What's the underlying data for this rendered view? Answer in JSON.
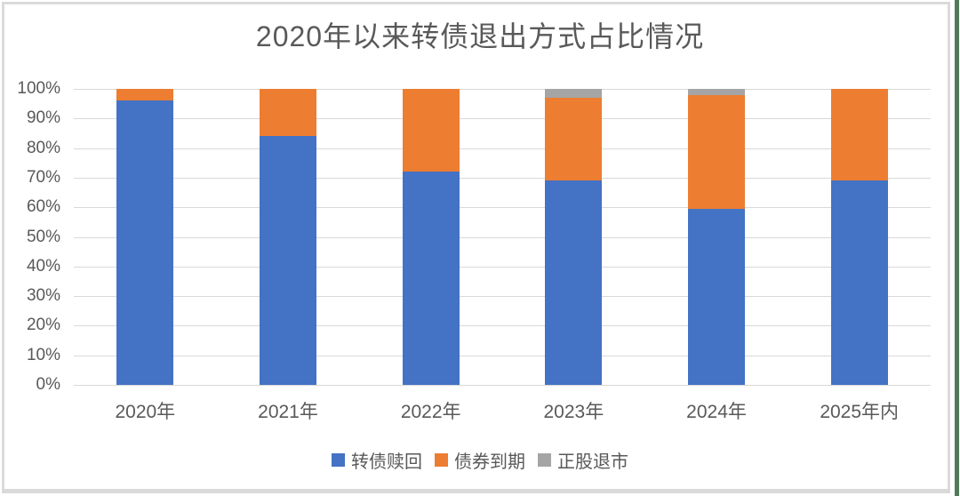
{
  "frame": {
    "panel_border_color": "#dadada",
    "accent_strip_color": "#527a5c"
  },
  "chart_data": {
    "type": "bar",
    "variant": "stacked-100",
    "title": "2020年以来转债退出方式占比情况",
    "categories": [
      "2020年",
      "2021年",
      "2022年",
      "2023年",
      "2024年",
      "2025年内"
    ],
    "series": [
      {
        "name": "转债赎回",
        "color": "#4472C4",
        "values": [
          96,
          84,
          72,
          69,
          59.5,
          69
        ]
      },
      {
        "name": "债券到期",
        "color": "#ED7D31",
        "values": [
          4,
          16,
          28,
          28,
          38.5,
          31
        ]
      },
      {
        "name": "正股退市",
        "color": "#A5A5A5",
        "values": [
          0,
          0,
          0,
          3,
          2,
          0
        ]
      }
    ],
    "y_ticks": [
      "100%",
      "90%",
      "80%",
      "70%",
      "60%",
      "50%",
      "40%",
      "30%",
      "20%",
      "10%",
      "0%"
    ],
    "ylim": [
      0,
      100
    ],
    "ylabel": "",
    "xlabel": "",
    "grid": true,
    "legend_position": "bottom",
    "text_color": "#595959",
    "grid_color": "#d9d9d9"
  }
}
